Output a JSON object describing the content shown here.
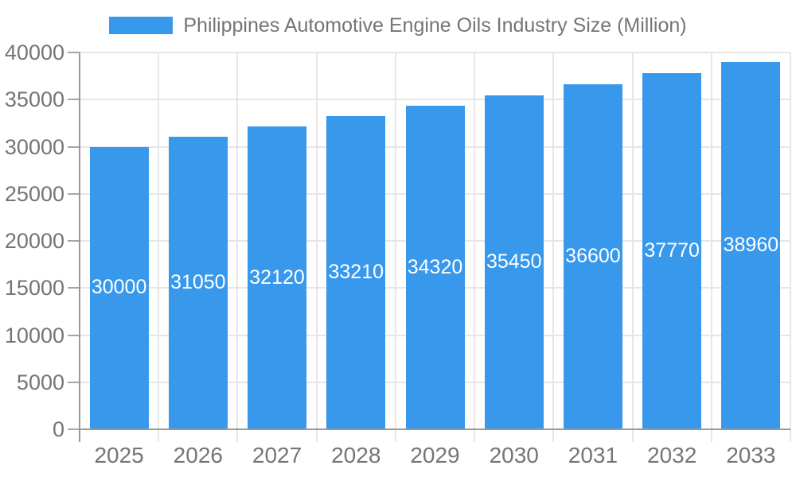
{
  "chart_data": {
    "type": "bar",
    "title": "Philippines Automotive Engine Oils Industry Size (Million)",
    "series_name": "Philippines Automotive Engine Oils Industry Size (Million)",
    "categories": [
      "2025",
      "2026",
      "2027",
      "2028",
      "2029",
      "2030",
      "2031",
      "2032",
      "2033"
    ],
    "values": [
      30000,
      31050,
      32120,
      33210,
      34320,
      35450,
      36600,
      37770,
      38960
    ],
    "value_labels": [
      "30000",
      "31050",
      "32120",
      "33210",
      "34320",
      "35450",
      "36600",
      "37770",
      "38960"
    ],
    "xlabel": "",
    "ylabel": "",
    "ylim": [
      0,
      40000
    ],
    "ytick_step": 5000,
    "yticks": [
      0,
      5000,
      10000,
      15000,
      20000,
      25000,
      30000,
      35000,
      40000
    ],
    "grid": true,
    "legend_position": "top",
    "colors": {
      "bar": "#3898ec",
      "axis": "#999999",
      "grid": "#e6e6e6",
      "tick": "#a6a6a6",
      "text": "#757575",
      "value_label": "#ffffff",
      "background": "#ffffff"
    }
  }
}
